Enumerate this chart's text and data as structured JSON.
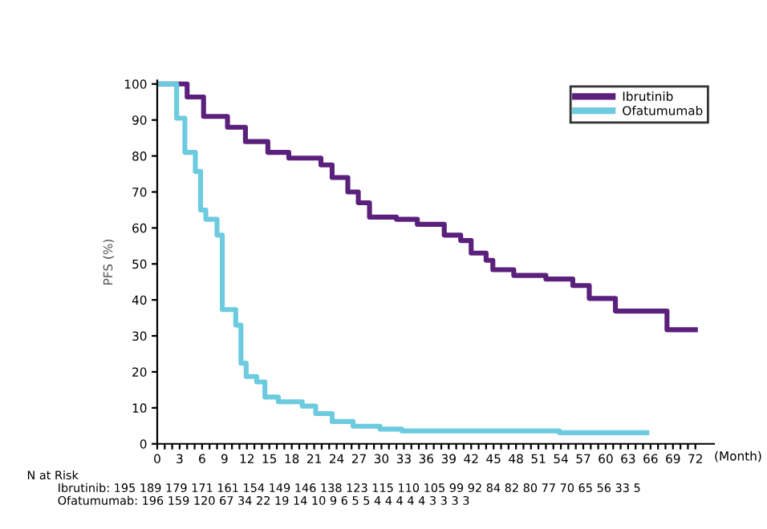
{
  "chart_data": {
    "type": "step",
    "xlabel": "(Month)",
    "ylabel": "PFS (%)",
    "series": [
      {
        "name": "Ibrutinib",
        "color": "#5b1f7c",
        "x": [
          0,
          0.3,
          4.0,
          6.2,
          9.4,
          11.8,
          14.8,
          17.6,
          21.9,
          23.4,
          25.5,
          26.9,
          28.4,
          32,
          34.8,
          38.4,
          40.6,
          42,
          44,
          44.9,
          47.7,
          52,
          55.6,
          57.8,
          61.3,
          68.2,
          72
        ],
        "values": [
          100,
          100,
          96.4,
          91,
          88,
          84,
          81,
          79.4,
          77.5,
          74,
          70,
          67,
          63,
          62.4,
          61,
          58,
          56.5,
          53,
          51,
          48.4,
          46.8,
          45.8,
          44,
          40.4,
          36.9,
          31.7,
          31.7
        ]
      },
      {
        "name": "Ofatumumab",
        "color": "#6ccbdf",
        "x": [
          0,
          0.3,
          2.6,
          3.7,
          5.1,
          5.8,
          6.5,
          8.0,
          8.7,
          10.5,
          11.2,
          11.9,
          13.3,
          14.4,
          16.2,
          19.4,
          21.2,
          23.4,
          26.2,
          29.8,
          32.7,
          53.8,
          65.5
        ],
        "values": [
          100,
          100,
          90.5,
          81,
          75.7,
          65,
          62.4,
          58,
          37.3,
          33,
          22.4,
          18.7,
          17.2,
          13,
          11.7,
          10.5,
          8.4,
          6.2,
          4.9,
          4.1,
          3.6,
          3.1,
          3.1
        ]
      }
    ],
    "xlim": [
      0,
      74.5
    ],
    "ylim": [
      0,
      101
    ],
    "xticks": [
      0,
      {
        "value": 1,
        "label": null
      },
      {
        "value": 2,
        "label": null
      },
      3,
      {
        "value": 4,
        "label": null
      },
      {
        "value": 5,
        "label": null
      },
      6,
      {
        "value": 7,
        "label": null
      },
      {
        "value": 8,
        "label": null
      },
      9,
      {
        "value": 10,
        "label": null
      },
      {
        "value": 11,
        "label": null
      },
      12,
      {
        "value": 13,
        "label": null
      },
      {
        "value": 14,
        "label": null
      },
      15,
      {
        "value": 16,
        "label": null
      },
      {
        "value": 17,
        "label": null
      },
      18,
      {
        "value": 19,
        "label": null
      },
      {
        "value": 20,
        "label": null
      },
      21,
      {
        "value": 22,
        "label": null
      },
      {
        "value": 23,
        "label": null
      },
      24,
      {
        "value": 25,
        "label": null
      },
      {
        "value": 26,
        "label": null
      },
      27,
      {
        "value": 28,
        "label": null
      },
      {
        "value": 29,
        "label": null
      },
      30,
      {
        "value": 31,
        "label": null
      },
      {
        "value": 32,
        "label": null
      },
      33,
      {
        "value": 34,
        "label": null
      },
      {
        "value": 35,
        "label": null
      },
      36,
      {
        "value": 37,
        "label": null
      },
      {
        "value": 38,
        "label": null
      },
      39,
      {
        "value": 40,
        "label": null
      },
      {
        "value": 41,
        "label": null
      },
      42,
      {
        "value": 43,
        "label": null
      },
      {
        "value": 44,
        "label": null
      },
      45,
      {
        "value": 46,
        "label": null
      },
      {
        "value": 47,
        "label": null
      },
      48,
      {
        "value": 49,
        "label": null
      },
      {
        "value": 50,
        "label": null
      },
      51,
      {
        "value": 52,
        "label": null
      },
      {
        "value": 53,
        "label": null
      },
      54,
      {
        "value": 55,
        "label": null
      },
      {
        "value": 56,
        "label": null
      },
      57,
      {
        "value": 58,
        "label": null
      },
      {
        "value": 59,
        "label": null
      },
      60,
      {
        "value": 61,
        "label": null
      },
      {
        "value": 62,
        "label": null
      },
      63,
      {
        "value": 64,
        "label": null
      },
      {
        "value": 65,
        "label": null
      },
      66,
      {
        "value": 67,
        "label": null
      },
      {
        "value": 68,
        "label": null
      },
      69,
      {
        "value": 70,
        "label": null
      },
      {
        "value": 71,
        "label": null
      },
      72
    ],
    "yticks": [
      0,
      10,
      20,
      30,
      40,
      50,
      60,
      70,
      80,
      90,
      100
    ],
    "grid": false,
    "legend": "top right",
    "annotations": [
      "N at Risk",
      "Ibrutinib: 195 189 179 171 161 154 149 146 138 123 115 110 105 99 92 84 82 80 77 70 65 56 33 5",
      "Ofatumumab: 196 159 120 67 34 22 19 14 10 9 6 5 5 4 4 4 4 4 3 3 3 3"
    ]
  }
}
